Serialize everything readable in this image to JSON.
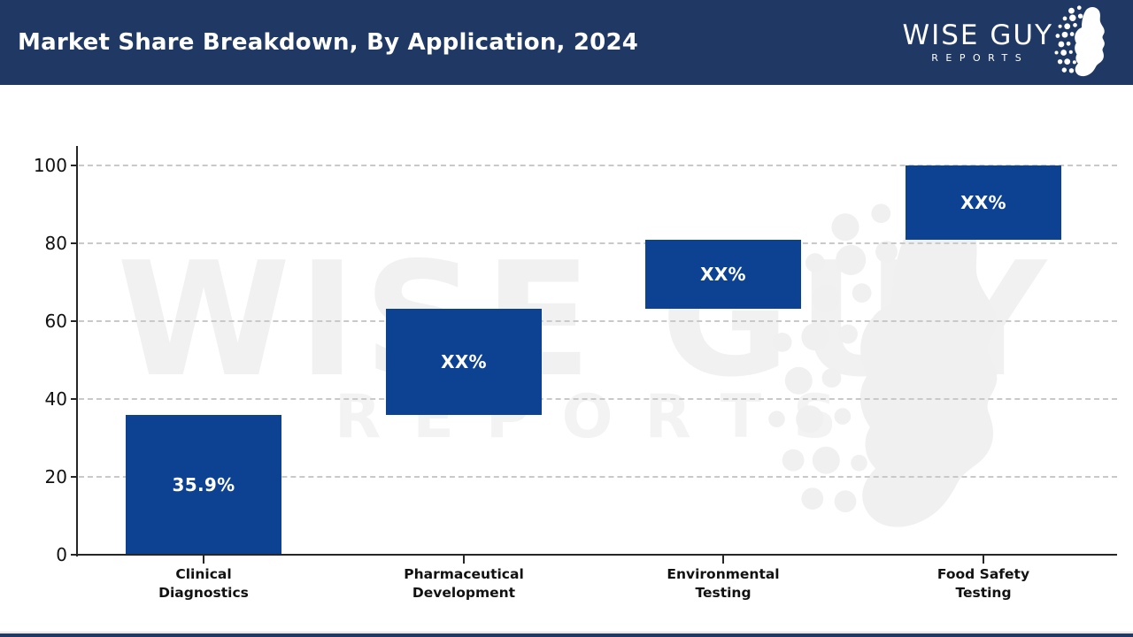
{
  "header": {
    "title": "Market Share Breakdown, By Application, 2024",
    "logo_text": "WISE GUY",
    "logo_subtext": "REPORTS",
    "bg_color": "#1f3864"
  },
  "watermark": {
    "text": "WISE GUY",
    "subtext": "REPORTS"
  },
  "chart_data": {
    "type": "bar",
    "variant": "waterfall",
    "title": "Market Share Breakdown, By Application, 2024",
    "categories": [
      "Clinical\nDiagnostics",
      "Pharmaceutical\nDevelopment",
      "Environmental\nTesting",
      "Food Safety\nTesting"
    ],
    "segments": [
      {
        "category": "Clinical Diagnostics",
        "start": 0,
        "end": 35.9,
        "label": "35.9%"
      },
      {
        "category": "Pharmaceutical Development",
        "start": 35.9,
        "end": 63.2,
        "label": "XX%"
      },
      {
        "category": "Environmental Testing",
        "start": 63.2,
        "end": 80.9,
        "label": "XX%"
      },
      {
        "category": "Food Safety Testing",
        "start": 80.9,
        "end": 100,
        "label": "XX%"
      }
    ],
    "y_ticks": [
      0,
      20,
      40,
      60,
      80,
      100
    ],
    "ylim": [
      0,
      105
    ],
    "xlabel": "",
    "ylabel": "",
    "legend": "none",
    "grid": "horizontal-dashed",
    "bar_color": "#0d4192",
    "gridline_color": "#c9c9c9",
    "axis_color": "#262626"
  }
}
